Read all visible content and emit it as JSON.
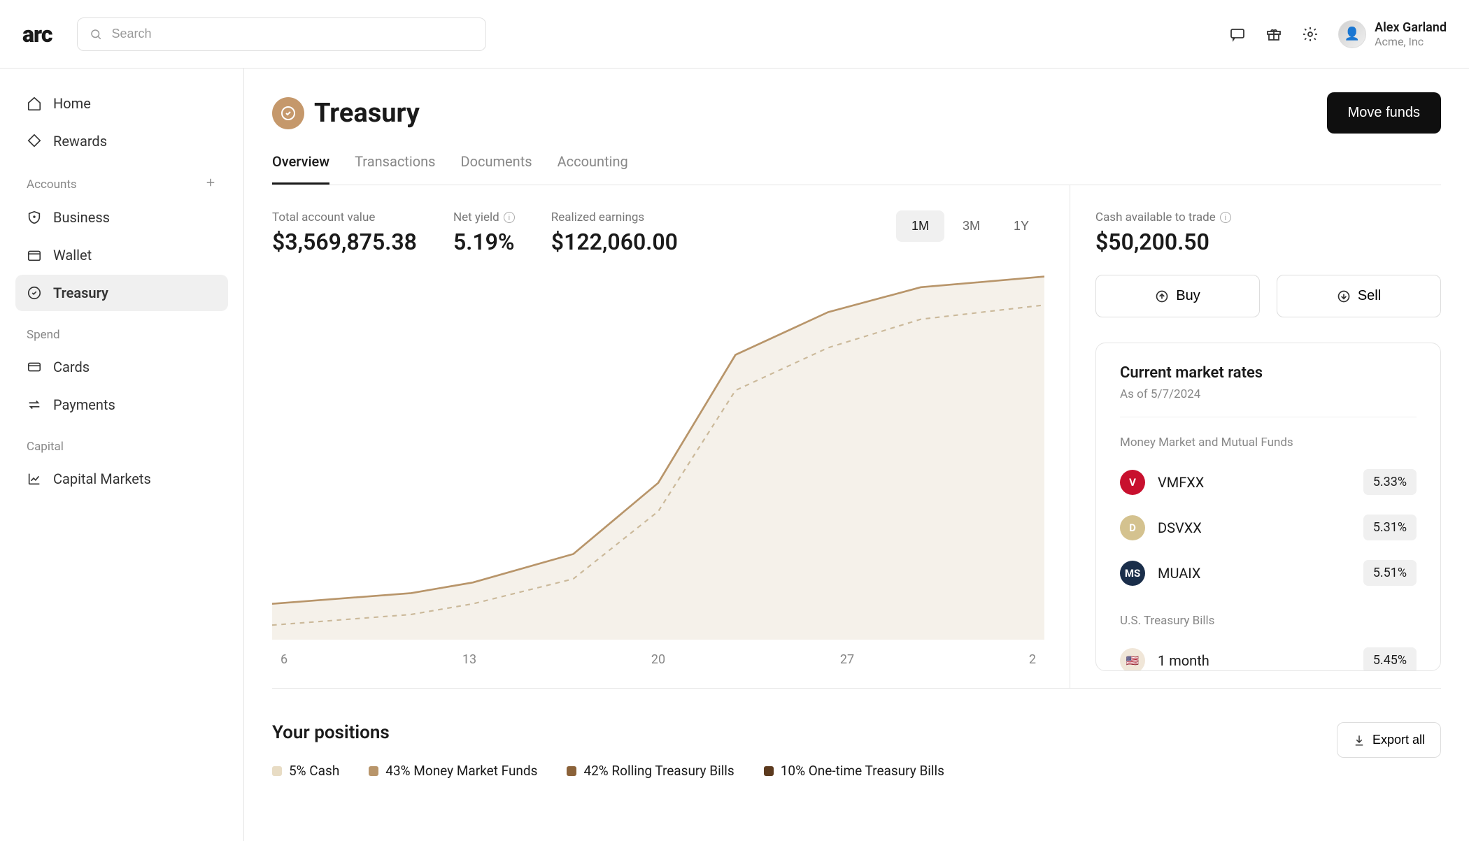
{
  "app": {
    "logo": "arc"
  },
  "search": {
    "placeholder": "Search"
  },
  "user": {
    "name": "Alex Garland",
    "company": "Acme, Inc"
  },
  "sidebar": {
    "items": [
      {
        "label": "Home"
      },
      {
        "label": "Rewards"
      }
    ],
    "accounts_header": "Accounts",
    "accounts": [
      {
        "label": "Business"
      },
      {
        "label": "Wallet"
      },
      {
        "label": "Treasury"
      }
    ],
    "spend_header": "Spend",
    "spend": [
      {
        "label": "Cards"
      },
      {
        "label": "Payments"
      }
    ],
    "capital_header": "Capital",
    "capital": [
      {
        "label": "Capital Markets"
      }
    ]
  },
  "page": {
    "title": "Treasury",
    "move_funds": "Move funds",
    "tabs": [
      "Overview",
      "Transactions",
      "Documents",
      "Accounting"
    ],
    "active_tab": 0
  },
  "stats": {
    "total_label": "Total account value",
    "total_value": "$3,569,875.38",
    "yield_label": "Net yield",
    "yield_value": "5.19%",
    "earnings_label": "Realized earnings",
    "earnings_value": "$122,060.00"
  },
  "chart": {
    "type": "area",
    "ranges": [
      "1M",
      "3M",
      "1Y"
    ],
    "active_range": 0,
    "x_labels": [
      "6",
      "13",
      "20",
      "27",
      "2"
    ],
    "line_color": "#b8956a",
    "fill_color": "#f5f1ea",
    "dashed_color": "#cbb99a",
    "background": "#ffffff",
    "main_series": [
      {
        "x": 0,
        "y": 0.08
      },
      {
        "x": 0.18,
        "y": 0.11
      },
      {
        "x": 0.26,
        "y": 0.14
      },
      {
        "x": 0.39,
        "y": 0.22
      },
      {
        "x": 0.5,
        "y": 0.42
      },
      {
        "x": 0.6,
        "y": 0.78
      },
      {
        "x": 0.72,
        "y": 0.9
      },
      {
        "x": 0.84,
        "y": 0.97
      },
      {
        "x": 1.0,
        "y": 1.0
      }
    ],
    "dashed_series": [
      {
        "x": 0,
        "y": 0.02
      },
      {
        "x": 0.18,
        "y": 0.05
      },
      {
        "x": 0.26,
        "y": 0.08
      },
      {
        "x": 0.39,
        "y": 0.15
      },
      {
        "x": 0.5,
        "y": 0.34
      },
      {
        "x": 0.6,
        "y": 0.68
      },
      {
        "x": 0.72,
        "y": 0.8
      },
      {
        "x": 0.84,
        "y": 0.88
      },
      {
        "x": 1.0,
        "y": 0.92
      }
    ]
  },
  "trade": {
    "cash_label": "Cash available to trade",
    "cash_value": "$50,200.50",
    "buy": "Buy",
    "sell": "Sell"
  },
  "rates": {
    "title": "Current market rates",
    "as_of": "As of 5/7/2024",
    "mm_label": "Money Market and Mutual Funds",
    "mm": [
      {
        "symbol": "VMFXX",
        "rate": "5.33%",
        "logo_bg": "#c8102e",
        "logo_text": "V"
      },
      {
        "symbol": "DSVXX",
        "rate": "5.31%",
        "logo_bg": "#d4c28f",
        "logo_text": "D"
      },
      {
        "symbol": "MUAIX",
        "rate": "5.51%",
        "logo_bg": "#1a2e4a",
        "logo_text": "MS"
      }
    ],
    "tbills_label": "U.S. Treasury Bills",
    "tbills": [
      {
        "symbol": "1 month",
        "rate": "5.45%",
        "logo_bg": "#f0e6d8",
        "logo_text": "🇺🇸"
      }
    ]
  },
  "positions": {
    "title": "Your positions",
    "export": "Export all",
    "legend": [
      {
        "label": "5% Cash",
        "color": "#e8dcc4"
      },
      {
        "label": "43% Money Market Funds",
        "color": "#b8956a"
      },
      {
        "label": "42% Rolling Treasury Bills",
        "color": "#8b6239"
      },
      {
        "label": "10% One-time Treasury Bills",
        "color": "#5c3a1e"
      }
    ]
  }
}
